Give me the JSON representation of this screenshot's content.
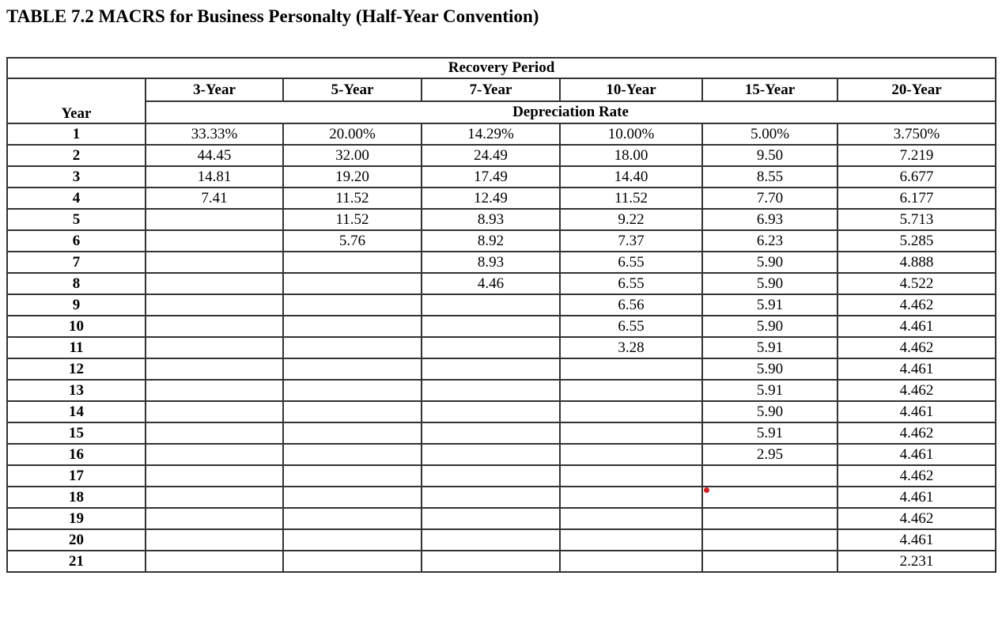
{
  "title": "TABLE 7.2 MACRS for Business Personalty (Half-Year Convention)",
  "table": {
    "recovery_period_label": "Recovery Period",
    "year_label": "Year",
    "depreciation_rate_label": "Depreciation Rate",
    "columns": [
      "3-Year",
      "5-Year",
      "7-Year",
      "10-Year",
      "15-Year",
      "20-Year"
    ],
    "rows": [
      {
        "year": "1",
        "values": [
          "33.33%",
          "20.00%",
          "14.29%",
          "10.00%",
          "5.00%",
          "3.750%"
        ]
      },
      {
        "year": "2",
        "values": [
          "44.45",
          "32.00",
          "24.49",
          "18.00",
          "9.50",
          "7.219"
        ]
      },
      {
        "year": "3",
        "values": [
          "14.81",
          "19.20",
          "17.49",
          "14.40",
          "8.55",
          "6.677"
        ]
      },
      {
        "year": "4",
        "values": [
          "7.41",
          "11.52",
          "12.49",
          "11.52",
          "7.70",
          "6.177"
        ]
      },
      {
        "year": "5",
        "values": [
          "",
          "11.52",
          "8.93",
          "9.22",
          "6.93",
          "5.713"
        ]
      },
      {
        "year": "6",
        "values": [
          "",
          "5.76",
          "8.92",
          "7.37",
          "6.23",
          "5.285"
        ]
      },
      {
        "year": "7",
        "values": [
          "",
          "",
          "8.93",
          "6.55",
          "5.90",
          "4.888"
        ]
      },
      {
        "year": "8",
        "values": [
          "",
          "",
          "4.46",
          "6.55",
          "5.90",
          "4.522"
        ]
      },
      {
        "year": "9",
        "values": [
          "",
          "",
          "",
          "6.56",
          "5.91",
          "4.462"
        ]
      },
      {
        "year": "10",
        "values": [
          "",
          "",
          "",
          "6.55",
          "5.90",
          "4.461"
        ]
      },
      {
        "year": "11",
        "values": [
          "",
          "",
          "",
          "3.28",
          "5.91",
          "4.462"
        ]
      },
      {
        "year": "12",
        "values": [
          "",
          "",
          "",
          "",
          "5.90",
          "4.461"
        ]
      },
      {
        "year": "13",
        "values": [
          "",
          "",
          "",
          "",
          "5.91",
          "4.462"
        ]
      },
      {
        "year": "14",
        "values": [
          "",
          "",
          "",
          "",
          "5.90",
          "4.461"
        ]
      },
      {
        "year": "15",
        "values": [
          "",
          "",
          "",
          "",
          "5.91",
          "4.462"
        ]
      },
      {
        "year": "16",
        "values": [
          "",
          "",
          "",
          "",
          "2.95",
          "4.461"
        ]
      },
      {
        "year": "17",
        "values": [
          "",
          "",
          "",
          "",
          "",
          "4.462"
        ]
      },
      {
        "year": "18",
        "values": [
          "",
          "",
          "",
          "",
          "",
          "4.461"
        ]
      },
      {
        "year": "19",
        "values": [
          "",
          "",
          "",
          "",
          "",
          "4.462"
        ]
      },
      {
        "year": "20",
        "values": [
          "",
          "",
          "",
          "",
          "",
          "4.461"
        ]
      },
      {
        "year": "21",
        "values": [
          "",
          "",
          "",
          "",
          "",
          "2.231"
        ]
      }
    ]
  },
  "red_dot": {
    "color": "#e01b1b"
  }
}
